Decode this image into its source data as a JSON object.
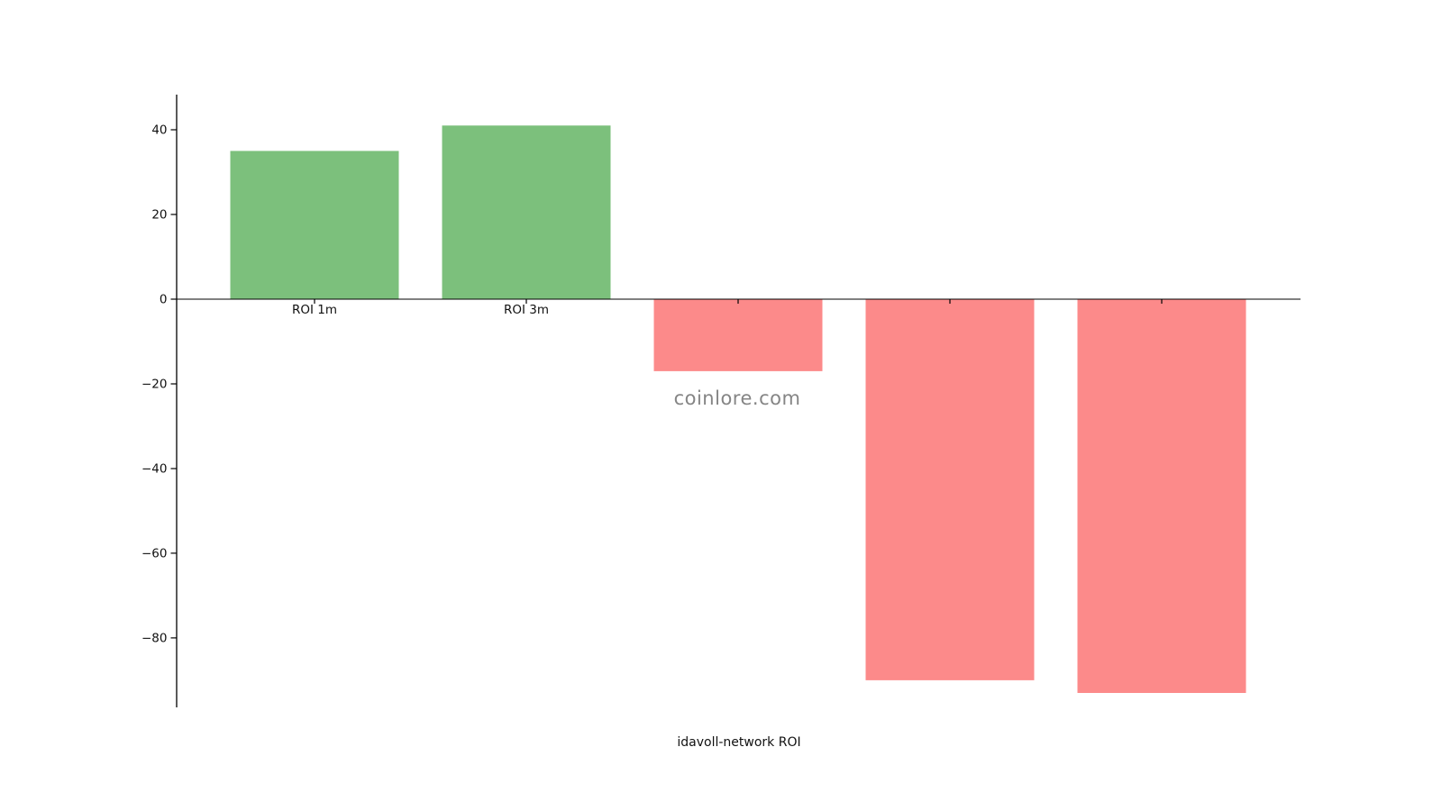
{
  "page": {
    "background_color": "#ffffff"
  },
  "chart_data": {
    "type": "bar",
    "title": "idavoll-network ROI",
    "watermark": "coinlore.com",
    "watermark_color": "#858585",
    "categories": [
      "ROI 1m",
      "ROI 3m",
      "",
      "",
      ""
    ],
    "values": [
      35,
      41,
      -17,
      -90,
      -93
    ],
    "series": [
      {
        "name": "ROI",
        "values": [
          35,
          41,
          -17,
          -90,
          -93
        ]
      }
    ],
    "positive_color": "#7cc07c",
    "negative_color": "#fc8a8a",
    "axis_color": "#000000",
    "tick_label_color": "#111111",
    "xlabel": "",
    "ylabel": "",
    "yticks": [
      40,
      20,
      0,
      -20,
      -40,
      -60,
      -80
    ],
    "yticklabels": [
      "40",
      "20",
      "0",
      "−20",
      "−40",
      "−60",
      "−80"
    ],
    "ylim": [
      -96.4,
      48.3
    ],
    "grid": false,
    "legend": null,
    "zero_baseline": true,
    "notes": "x tick labels only shown for first two bars; negative bars unlabeled"
  }
}
